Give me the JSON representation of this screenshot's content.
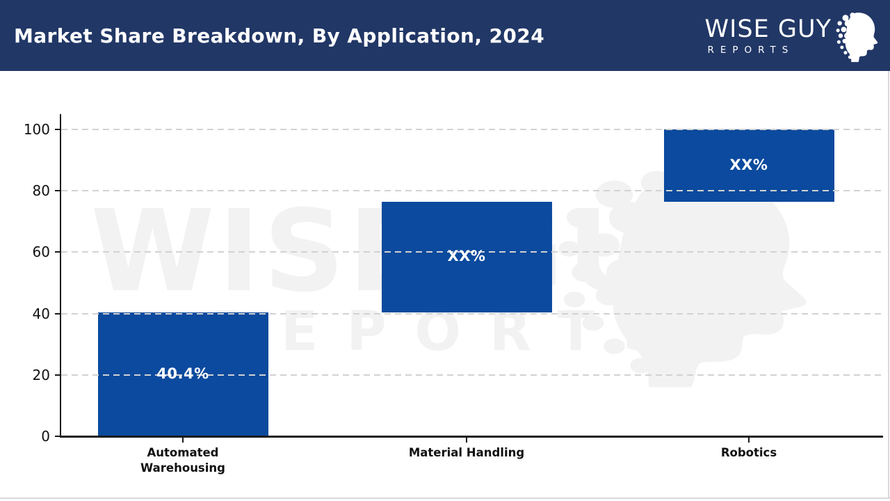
{
  "header": {
    "title": "Market Share Breakdown, By Application, 2024",
    "logo": {
      "wordmark": "WISE GUY",
      "subtext": "REPORTS"
    }
  },
  "watermark": {
    "line1": "WISE GUY",
    "line2": "REPORTS"
  },
  "colors": {
    "header_bg": "#213766",
    "bar_fill": "#0B4A9E",
    "grid_line": "#d2d2d2",
    "axis_line": "#1a1a1a",
    "text_dark": "#111111",
    "watermark": "#f2f2f3",
    "border_line": "#d9d9d9",
    "label_on_bar": "#ffffff"
  },
  "chart_data": {
    "type": "bar",
    "variant": "floating-segment-waterfall",
    "title": "Market Share Breakdown, By Application, 2024",
    "categories": [
      "Automated Warehousing",
      "Material Handling",
      "Robotics"
    ],
    "segments": [
      {
        "category": "Automated Warehousing",
        "start": 0,
        "end": 40.4,
        "label": "40.4%"
      },
      {
        "category": "Material Handling",
        "start": 40.4,
        "end": 76.5,
        "label": "XX%"
      },
      {
        "category": "Robotics",
        "start": 76.5,
        "end": 100,
        "label": "XX%"
      }
    ],
    "y_ticks": [
      0,
      20,
      40,
      60,
      80,
      100
    ],
    "ylim": [
      0,
      105
    ],
    "xlabel": "",
    "ylabel": "",
    "grid": "horizontal-dashed",
    "legend": "none"
  }
}
